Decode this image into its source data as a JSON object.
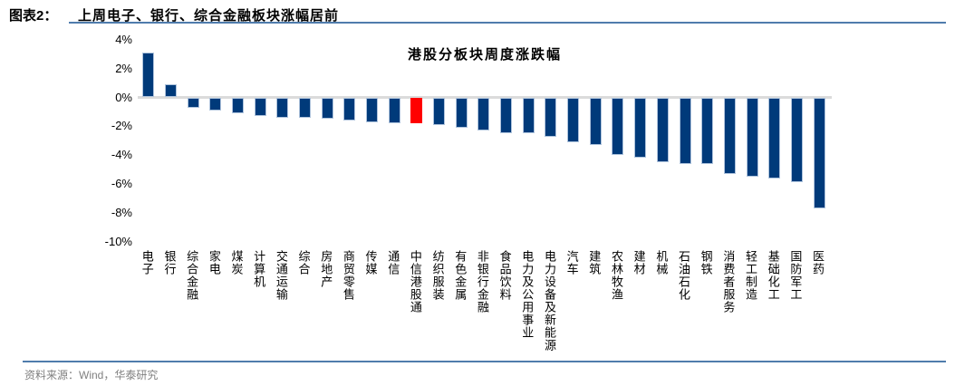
{
  "header": {
    "label": "图表2：",
    "title": "上周电子、银行、综合金融板块涨幅居前"
  },
  "chart_data": {
    "type": "bar",
    "title": "港股分板块周度涨跌幅",
    "categories": [
      "电子",
      "银行",
      "综合金融",
      "家电",
      "煤炭",
      "计算机",
      "交通运输",
      "综合",
      "房地产",
      "商贸零售",
      "传媒",
      "通信",
      "中信港股通",
      "纺织服装",
      "有色金属",
      "非银行金融",
      "食品饮料",
      "电力及公用事业",
      "电力设备及新能源",
      "汽车",
      "建筑",
      "农林牧渔",
      "建材",
      "机械",
      "石油石化",
      "钢铁",
      "消费者服务",
      "轻工制造",
      "基础化工",
      "国防军工",
      "医药"
    ],
    "values": [
      3.1,
      0.9,
      -0.7,
      -0.9,
      -1.1,
      -1.3,
      -1.4,
      -1.4,
      -1.5,
      -1.6,
      -1.7,
      -1.8,
      -1.8,
      -1.9,
      -2.1,
      -2.3,
      -2.5,
      -2.5,
      -2.7,
      -3.1,
      -3.3,
      -4.0,
      -4.2,
      -4.5,
      -4.6,
      -4.6,
      -5.3,
      -5.5,
      -5.6,
      -5.9,
      -7.7
    ],
    "unit": "%",
    "highlight_index": 12,
    "highlight_category": "中信港股通",
    "ylim": [
      -10,
      4
    ],
    "yticks": [
      {
        "label": "4%",
        "value": 4
      },
      {
        "label": "2%",
        "value": 2
      },
      {
        "label": "0%",
        "value": 0
      },
      {
        "label": "-2%",
        "value": -2
      },
      {
        "label": "-4%",
        "value": -4
      },
      {
        "label": "-6%",
        "value": -6
      },
      {
        "label": "-8%",
        "value": -8
      },
      {
        "label": "-10%",
        "value": -10
      }
    ],
    "grid": false,
    "legend": false,
    "colors": {
      "bar": "#003A7A",
      "bar_border": "#AEC3DC",
      "highlight": "#FF0000",
      "zero_line": "#DBDBDB",
      "rule_line": "#4F7CAC",
      "source_text": "#808080"
    }
  },
  "footer": {
    "source": "资料来源：Wind，华泰研究"
  }
}
